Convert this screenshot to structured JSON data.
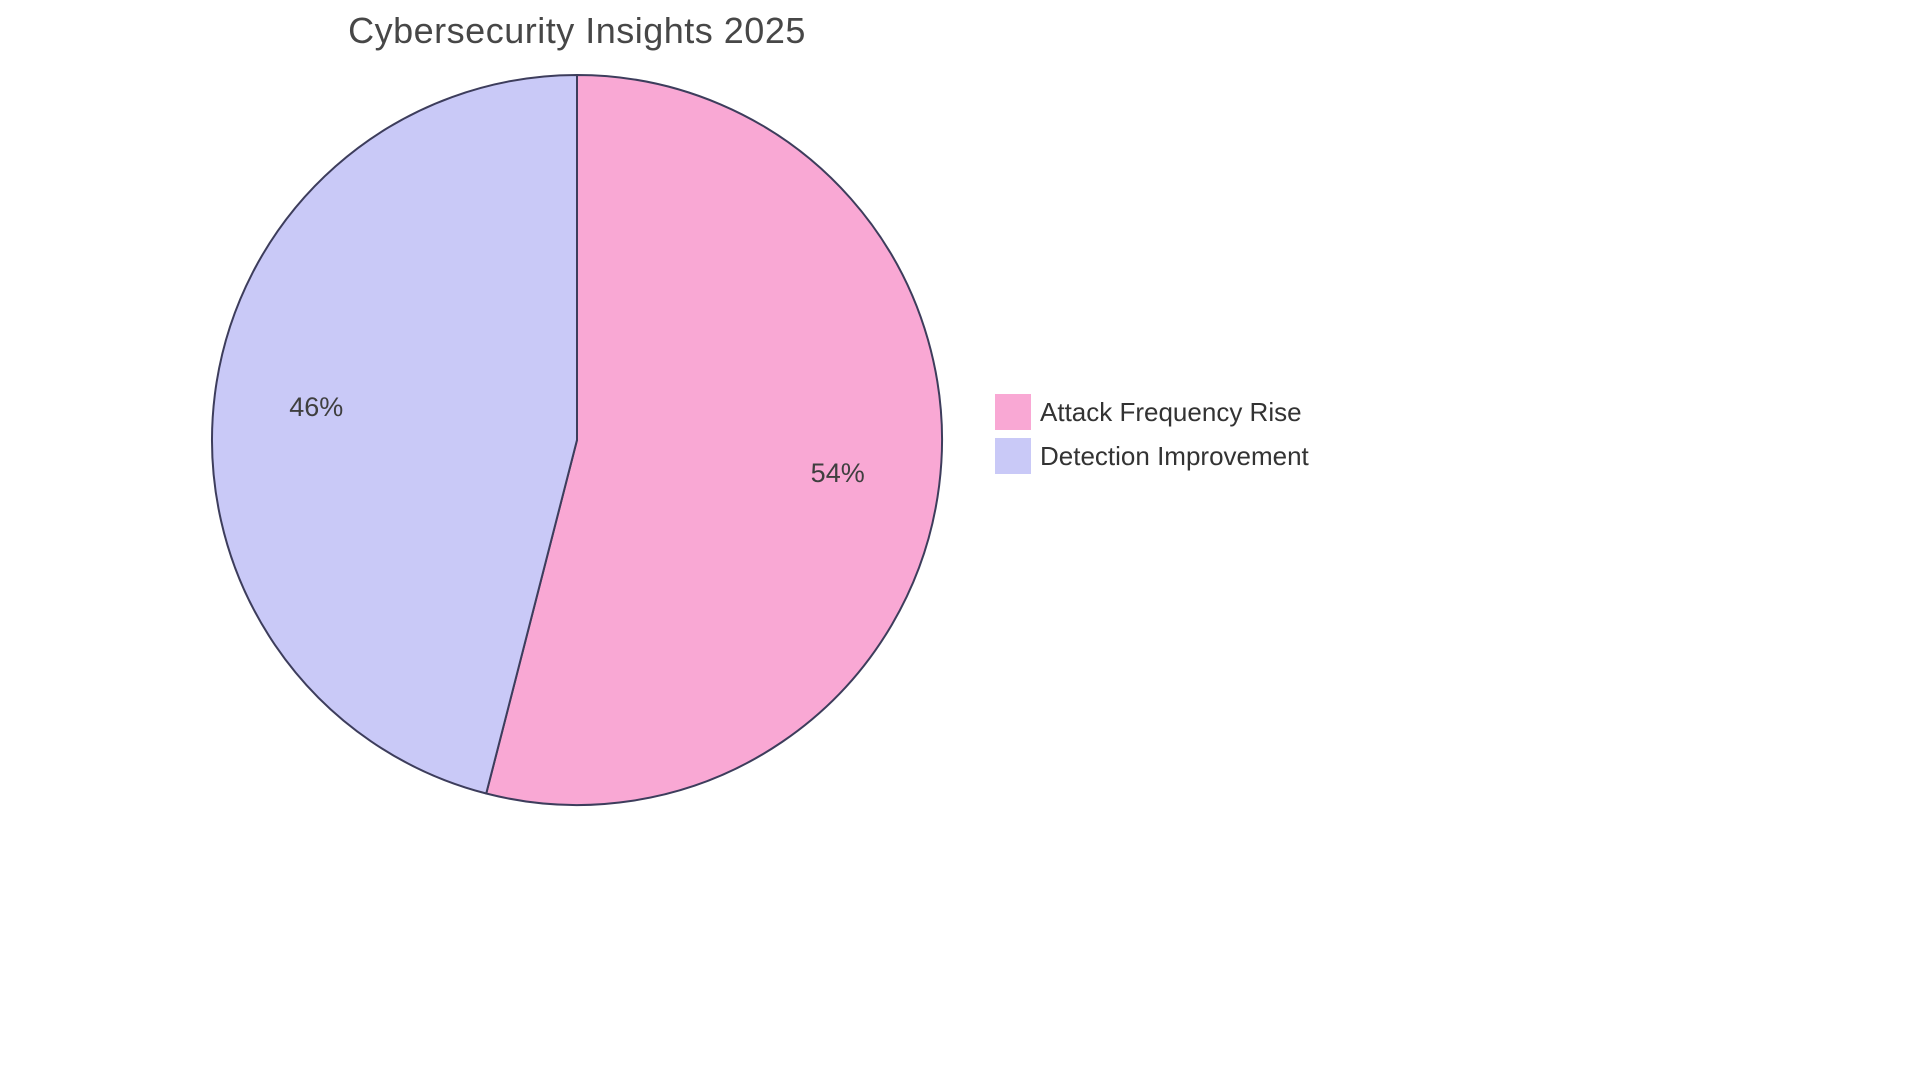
{
  "chart_data": {
    "type": "pie",
    "title": "Cybersecurity Insights 2025",
    "labels": [
      "Attack Frequency Rise",
      "Detection Improvement"
    ],
    "values": [
      54,
      46
    ],
    "slice_labels": [
      "54%",
      "46%"
    ],
    "colors": [
      "#F9A8D4",
      "#C9C9F7"
    ],
    "stroke_color": "#3D3D5C",
    "text_color": "#3f3f3f",
    "legend_position": "right",
    "start_angle_deg": -90,
    "direction": "clockwise",
    "grid": false
  }
}
